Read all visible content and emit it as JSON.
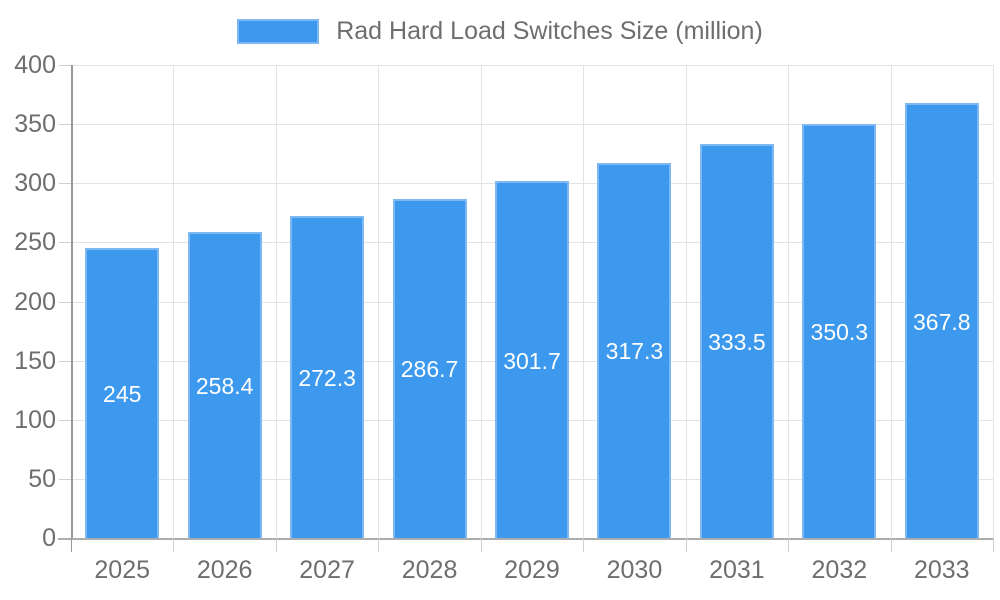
{
  "legend": {
    "label": "Rad Hard Load Switches Size (million)"
  },
  "chart_data": {
    "type": "bar",
    "title": "Rad Hard Load Switches Size (million)",
    "categories": [
      "2025",
      "2026",
      "2027",
      "2028",
      "2029",
      "2030",
      "2031",
      "2032",
      "2033"
    ],
    "values": [
      245,
      258.4,
      272.3,
      286.7,
      301.7,
      317.3,
      333.5,
      350.3,
      367.8
    ],
    "value_labels": [
      "245",
      "258.4",
      "272.3",
      "286.7",
      "301.7",
      "317.3",
      "333.5",
      "350.3",
      "367.8"
    ],
    "xlabel": "",
    "ylabel": "",
    "ylim": [
      0,
      400
    ],
    "yticks": [
      0,
      50,
      100,
      150,
      200,
      250,
      300,
      350,
      400
    ],
    "grid": true,
    "legend_position": "top-center",
    "colors": {
      "bar_fill": "#3C99ED",
      "bar_border": "#7EB8F3",
      "gridline": "#E3E3E3",
      "axis_line": "#999999",
      "zero_line": "#ACACAC",
      "tick": "#CFCFCF",
      "axis_text": "#6E6E6E",
      "value_text": "#FFFFFF"
    }
  }
}
